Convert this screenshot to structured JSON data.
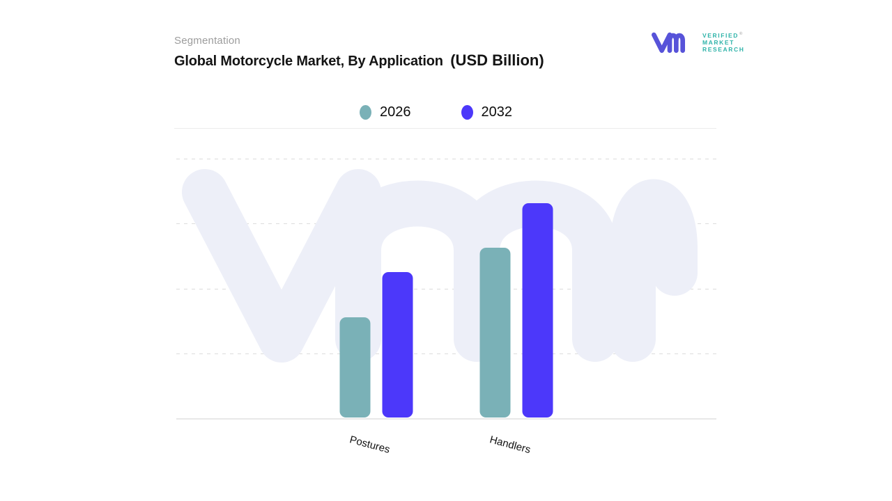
{
  "header": {
    "eyebrow": "Segmentation",
    "title": "Global Motorcycle Market, By Application",
    "title_suffix": "(USD Billion)"
  },
  "logo": {
    "glyph": "vmr-monogram",
    "glyph_color": "#5753d9",
    "text_color": "#2fb3a9",
    "lines": [
      "VERIFIED",
      "MARKET",
      "RESEARCH"
    ],
    "registered_mark": "®"
  },
  "watermark": {
    "glyph": "vmr-monogram-watermark",
    "color": "#edeff8"
  },
  "chart_data": {
    "type": "bar",
    "title": "Global Motorcycle Market, By Application (USD Billion)",
    "categories": [
      "Postures",
      "Handlers"
    ],
    "series": [
      {
        "name": "2026",
        "color": "#7ab1b7",
        "values": [
          38.5,
          65.5
        ]
      },
      {
        "name": "2032",
        "color": "#4c38fa",
        "values": [
          56,
          82.5
        ]
      }
    ],
    "xlabel": "",
    "ylabel": "",
    "ylim": [
      0,
      100
    ],
    "y_tick_labels_visible": false,
    "gridlines": {
      "visible": true,
      "style": "dashed",
      "interval": 25
    },
    "legend_position": "top-center",
    "group_centers_pct": [
      37,
      63
    ],
    "units_note": "no numeric axis labels shown; values are relative estimates"
  }
}
